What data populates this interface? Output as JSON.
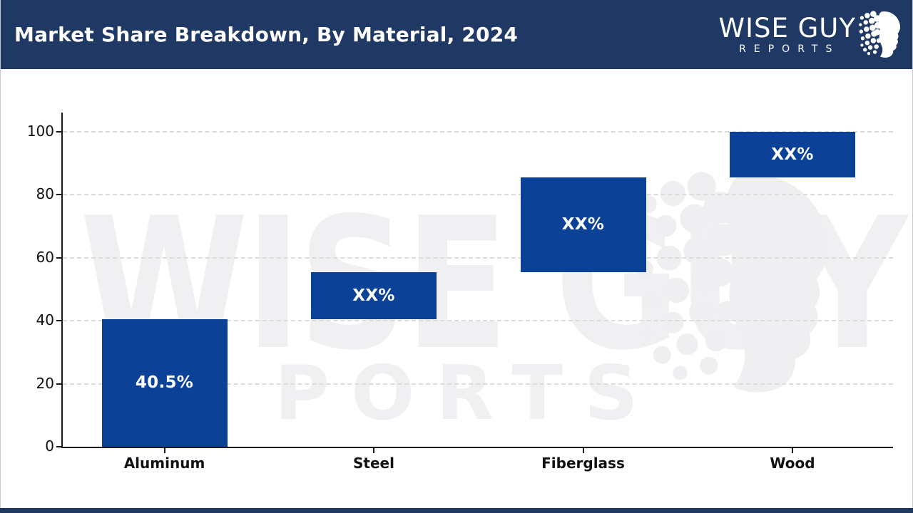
{
  "header": {
    "title": "Market Share Breakdown, By Material, 2024",
    "bg_color": "#1f3864"
  },
  "logo": {
    "line1": "WISE GUY",
    "line2": "REPORTS"
  },
  "watermark": {
    "line1": "WISE GUY",
    "line2": "PORTS"
  },
  "chart_data": {
    "type": "bar",
    "subtype": "waterfall",
    "title": "Market Share Breakdown, By Material, 2024",
    "categories": [
      "Aluminum",
      "Steel",
      "Fiberglass",
      "Wood"
    ],
    "values": [
      40.5,
      15,
      30,
      14.5
    ],
    "cumulative_ranges": [
      [
        0,
        40.5
      ],
      [
        40.5,
        55.5
      ],
      [
        55.5,
        85.5
      ],
      [
        85.5,
        100
      ]
    ],
    "labels": [
      "40.5%",
      "XX%",
      "XX%",
      "XX%"
    ],
    "xlabel": "",
    "ylabel": "",
    "ylim": [
      0,
      100
    ],
    "yticks": [
      0,
      20,
      40,
      60,
      80,
      100
    ],
    "grid": "horizontal-dashed",
    "legend": "none",
    "bar_color": "#0b4297",
    "label_color": "#ffffff",
    "gridline_color": "#dcdcdc"
  },
  "colors": {
    "header_bg": "#1f3864",
    "footer_bg": "#1f3864",
    "watermark": "#f0f0f3"
  }
}
